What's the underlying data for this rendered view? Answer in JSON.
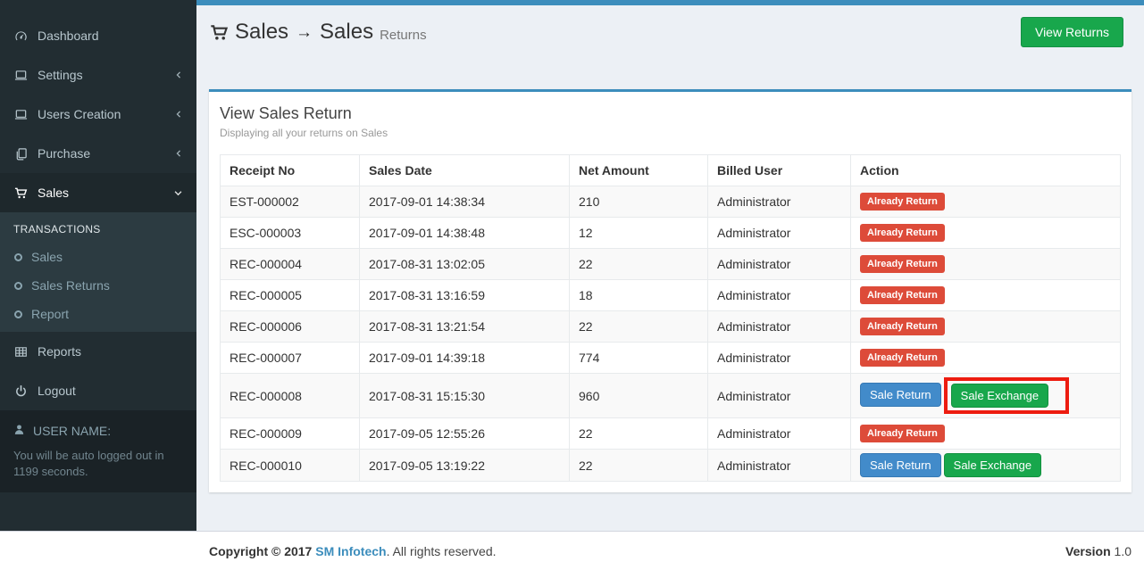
{
  "colors": {
    "accent_blue": "#3c8dbc",
    "success_green": "#18a74c",
    "danger_red": "#dd4b39",
    "primary_blue": "#428bca",
    "highlight_red": "#ed1c10",
    "sidebar_bg": "#222d32",
    "sidebar_active_bg": "#1e282c",
    "submenu_bg": "#2c3b41",
    "content_bg": "#ecf0f5"
  },
  "sidebar": {
    "items": [
      {
        "label": "Dashboard",
        "icon": "dashboard-icon"
      },
      {
        "label": "Settings",
        "icon": "laptop-icon",
        "chevron": "left"
      },
      {
        "label": "Users Creation",
        "icon": "laptop-icon",
        "chevron": "left"
      },
      {
        "label": "Purchase",
        "icon": "copy-icon",
        "chevron": "left"
      },
      {
        "label": "Sales",
        "icon": "cart-icon",
        "chevron": "down",
        "active": true
      }
    ],
    "section_label": "TRANSACTIONS",
    "sub_items": [
      {
        "label": "Sales"
      },
      {
        "label": "Sales Returns"
      },
      {
        "label": "Report"
      }
    ],
    "bottom_items": [
      {
        "label": "Reports",
        "icon": "table-icon"
      },
      {
        "label": "Logout",
        "icon": "power-icon"
      }
    ],
    "user_panel": {
      "label": "USER NAME:",
      "note_line1": "You will be auto logged out in",
      "note_line2": "1199 seconds."
    }
  },
  "header": {
    "title_primary": "Sales",
    "separator": "→",
    "title_secondary": "Sales",
    "title_sub": "Returns",
    "view_returns_label": "View Returns"
  },
  "panel": {
    "title": "View Sales Return",
    "subtitle": "Displaying all your returns on Sales"
  },
  "table": {
    "columns": [
      "Receipt No",
      "Sales Date",
      "Net Amount",
      "Billed User",
      "Action"
    ],
    "action_labels": {
      "already": "Already Return",
      "return": "Sale Return",
      "exchange": "Sale Exchange"
    },
    "rows": [
      {
        "receipt": "EST-000002",
        "date": "2017-09-01 14:38:34",
        "amount": "210",
        "user": "Administrator",
        "actions": [
          {
            "type": "already",
            "label": "Already Return"
          }
        ]
      },
      {
        "receipt": "ESC-000003",
        "date": "2017-09-01 14:38:48",
        "amount": "12",
        "user": "Administrator",
        "actions": [
          {
            "type": "already",
            "label": "Already Return"
          }
        ]
      },
      {
        "receipt": "REC-000004",
        "date": "2017-08-31 13:02:05",
        "amount": "22",
        "user": "Administrator",
        "actions": [
          {
            "type": "already",
            "label": "Already Return"
          }
        ]
      },
      {
        "receipt": "REC-000005",
        "date": "2017-08-31 13:16:59",
        "amount": "18",
        "user": "Administrator",
        "actions": [
          {
            "type": "already",
            "label": "Already Return"
          }
        ]
      },
      {
        "receipt": "REC-000006",
        "date": "2017-08-31 13:21:54",
        "amount": "22",
        "user": "Administrator",
        "actions": [
          {
            "type": "already",
            "label": "Already Return"
          }
        ]
      },
      {
        "receipt": "REC-000007",
        "date": "2017-09-01 14:39:18",
        "amount": "774",
        "user": "Administrator",
        "actions": [
          {
            "type": "already",
            "label": "Already Return"
          }
        ]
      },
      {
        "receipt": "REC-000008",
        "date": "2017-08-31 15:15:30",
        "amount": "960",
        "user": "Administrator",
        "actions": [
          {
            "type": "return",
            "label": "Sale Return"
          },
          {
            "type": "exchange",
            "label": "Sale Exchange",
            "highlighted": true
          }
        ]
      },
      {
        "receipt": "REC-000009",
        "date": "2017-09-05 12:55:26",
        "amount": "22",
        "user": "Administrator",
        "actions": [
          {
            "type": "already",
            "label": "Already Return"
          }
        ]
      },
      {
        "receipt": "REC-000010",
        "date": "2017-09-05 13:19:22",
        "amount": "22",
        "user": "Administrator",
        "actions": [
          {
            "type": "return",
            "label": "Sale Return"
          },
          {
            "type": "exchange",
            "label": "Sale Exchange"
          }
        ]
      }
    ]
  },
  "footer": {
    "copyright_prefix": "Copyright © 2017",
    "company": "SM Infotech",
    "copyright_suffix": ". All rights reserved.",
    "version_label": "Version",
    "version_value": "1.0"
  }
}
